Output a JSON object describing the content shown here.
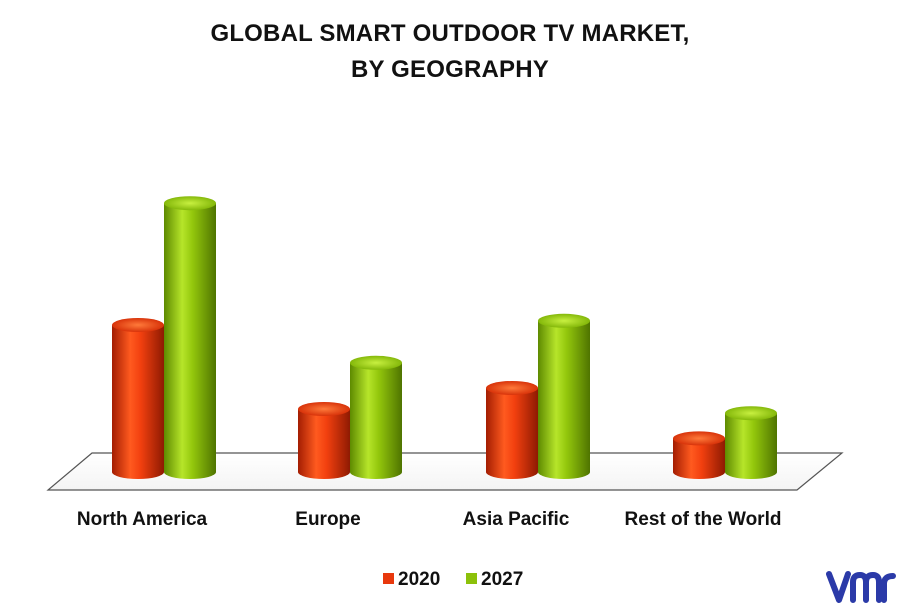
{
  "chart_data": {
    "type": "bar",
    "title": "GLOBAL SMART OUTDOOR TV MARKET,",
    "subtitle": "BY GEOGRAPHY",
    "categories": [
      "North America",
      "Europe",
      "Asia Pacific",
      "Rest of the World"
    ],
    "series": [
      {
        "name": "2020",
        "values": [
          35,
          15,
          20,
          8
        ],
        "color": "#e8380d"
      },
      {
        "name": "2027",
        "values": [
          64,
          26,
          36,
          14
        ],
        "color": "#8cc10a"
      }
    ],
    "ylim": [
      0,
      70
    ],
    "xlabel": "",
    "ylabel": "",
    "grid": false,
    "legend_placement": "bottom-center"
  },
  "logo": {
    "icon": "vmr-logo-icon",
    "color": "#2b3aa8"
  }
}
